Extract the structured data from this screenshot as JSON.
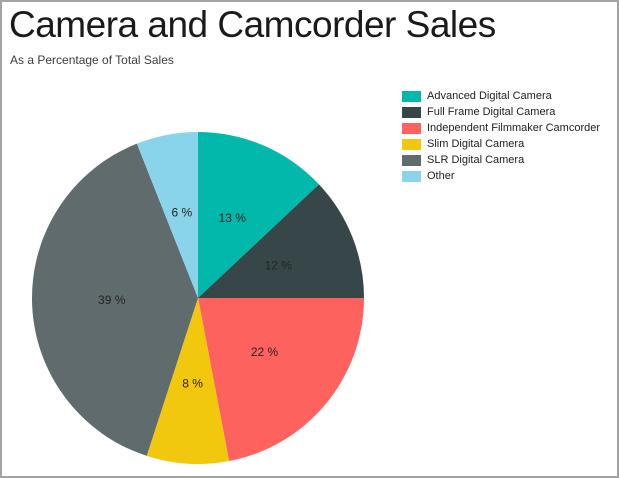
{
  "header": {
    "title": "Camera and Camcorder Sales",
    "subtitle": "As a Percentage of Total Sales"
  },
  "chart_data": {
    "type": "pie",
    "title": "Camera and Camcorder Sales",
    "subtitle": "As a Percentage of Total Sales",
    "unit": "percent of total sales",
    "legend_position": "right",
    "start_angle_deg": 0,
    "direction": "clockwise",
    "label_color": "#252423",
    "label_format": "{value} %",
    "slices": [
      {
        "label": "Advanced Digital Camera",
        "value": 13,
        "display": "13 %",
        "color": "#01B8AA"
      },
      {
        "label": "Full Frame Digital Camera",
        "value": 12,
        "display": "12 %",
        "color": "#374649"
      },
      {
        "label": "Independent Filmmaker Camcorder",
        "value": 22,
        "display": "22 %",
        "color": "#FD625E"
      },
      {
        "label": "Slim Digital Camera",
        "value": 8,
        "display": "8 %",
        "color": "#F2C80F"
      },
      {
        "label": "SLR Digital Camera",
        "value": 39,
        "display": "39 %",
        "color": "#5F6B6D"
      },
      {
        "label": "Other",
        "value": 6,
        "display": "6 %",
        "color": "#8AD4EB"
      }
    ]
  }
}
